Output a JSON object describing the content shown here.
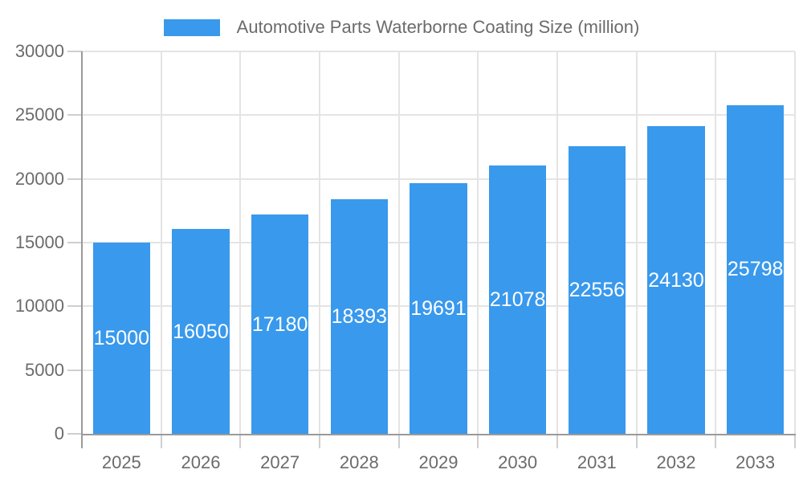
{
  "chart_data": {
    "type": "bar",
    "title": "",
    "legend": {
      "label": "Automotive Parts Waterborne Coating Size (million)",
      "position": "top"
    },
    "categories": [
      "2025",
      "2026",
      "2027",
      "2028",
      "2029",
      "2030",
      "2031",
      "2032",
      "2033"
    ],
    "series": [
      {
        "name": "Automotive Parts Waterborne Coating Size (million)",
        "values": [
          15000,
          16050,
          17180,
          18393,
          19691,
          21078,
          22556,
          24130,
          25798
        ]
      }
    ],
    "xlabel": "",
    "ylabel": "",
    "ylim": [
      0,
      30000
    ],
    "ytick_step": 5000,
    "grid": true,
    "value_labels": "inside-center",
    "colors": {
      "bar": "#3999EC",
      "bar_label": "#FFFFFF",
      "grid": "#E4E4E4",
      "tick": "#CFCFCF",
      "axis": "#9A9A9A",
      "text": "#6B6B6B",
      "background": "#FFFFFF"
    }
  }
}
